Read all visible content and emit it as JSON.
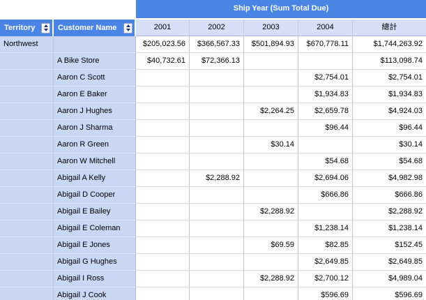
{
  "colors": {
    "header-blue": "#4a84e4",
    "panel-blue": "#c9d7f5",
    "year-header-blue": "#d6dff7",
    "sort-glyph": "#1c3576"
  },
  "table": {
    "col_group_header": "Ship Year (Sum Total Due)",
    "row_field_headers": {
      "territory_label": "Territory",
      "customer_label": "Customer Name"
    },
    "year_columns": [
      "2001",
      "2002",
      "2003",
      "2004",
      "總計"
    ],
    "rows": [
      {
        "territory": "Northwest",
        "customer": "",
        "values": [
          "$205,023.56",
          "$366,567.33",
          "$501,894.93",
          "$670,778.11",
          "$1,744,263.92"
        ]
      },
      {
        "territory": "",
        "customer": "A Bike Store",
        "values": [
          "$40,732.61",
          "$72,366.13",
          "",
          "",
          "$113,098.74"
        ]
      },
      {
        "territory": "",
        "customer": "Aaron C Scott",
        "values": [
          "",
          "",
          "",
          "$2,754.01",
          "$2,754.01"
        ]
      },
      {
        "territory": "",
        "customer": "Aaron E Baker",
        "values": [
          "",
          "",
          "",
          "$1,934.83",
          "$1,934.83"
        ]
      },
      {
        "territory": "",
        "customer": "Aaron J Hughes",
        "values": [
          "",
          "",
          "$2,264.25",
          "$2,659.78",
          "$4,924.03"
        ]
      },
      {
        "territory": "",
        "customer": "Aaron J Sharma",
        "values": [
          "",
          "",
          "",
          "$96.44",
          "$96.44"
        ]
      },
      {
        "territory": "",
        "customer": "Aaron R Green",
        "values": [
          "",
          "",
          "$30.14",
          "",
          "$30.14"
        ]
      },
      {
        "territory": "",
        "customer": "Aaron W Mitchell",
        "values": [
          "",
          "",
          "",
          "$54.68",
          "$54.68"
        ]
      },
      {
        "territory": "",
        "customer": "Abigail A Kelly",
        "values": [
          "",
          "$2,288.92",
          "",
          "$2,694.06",
          "$4,982.98"
        ]
      },
      {
        "territory": "",
        "customer": "Abigail D Cooper",
        "values": [
          "",
          "",
          "",
          "$666.86",
          "$666.86"
        ]
      },
      {
        "territory": "",
        "customer": "Abigail E Bailey",
        "values": [
          "",
          "",
          "$2,288.92",
          "",
          "$2,288.92"
        ]
      },
      {
        "territory": "",
        "customer": "Abigail E Coleman",
        "values": [
          "",
          "",
          "",
          "$1,238.14",
          "$1,238.14"
        ]
      },
      {
        "territory": "",
        "customer": "Abigail E Jones",
        "values": [
          "",
          "",
          "$69.59",
          "$82.85",
          "$152.45"
        ]
      },
      {
        "territory": "",
        "customer": "Abigail G Hughes",
        "values": [
          "",
          "",
          "",
          "$2,649.85",
          "$2,649.85"
        ]
      },
      {
        "territory": "",
        "customer": "Abigail I Ross",
        "values": [
          "",
          "",
          "$2,288.92",
          "$2,700.12",
          "$4,989.04"
        ]
      },
      {
        "territory": "",
        "customer": "Abigail J Cook",
        "values": [
          "",
          "",
          "",
          "$596.69",
          "$596.69"
        ]
      }
    ]
  }
}
